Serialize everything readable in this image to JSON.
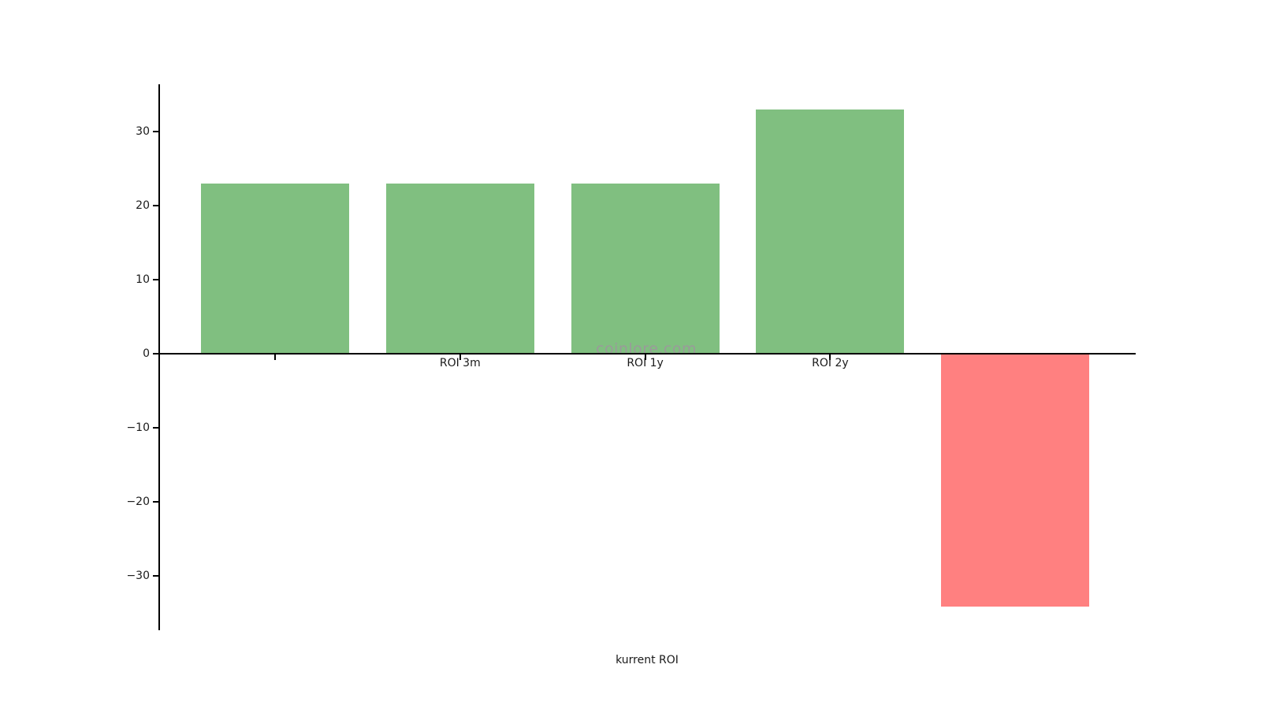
{
  "figure": {
    "background_color": "#ffffff",
    "watermark_text": "coinlore.com",
    "watermark_color": "#9a9a9a"
  },
  "chart_data": {
    "type": "bar",
    "title": "",
    "xlabel": "kurrent ROI",
    "ylabel": "",
    "categories": [
      "",
      "ROI 3m",
      "ROI 1y",
      "ROI 2y",
      ""
    ],
    "values": [
      23,
      23,
      23,
      33,
      -34
    ],
    "bar_colors": [
      "#80bf80",
      "#80bf80",
      "#80bf80",
      "#80bf80",
      "#ff8080"
    ],
    "positive_color": "#80bf80",
    "negative_color": "#ff8080",
    "ylim": [
      -37.35,
      36.35
    ],
    "yticks": [
      {
        "value": 30,
        "label": "30"
      },
      {
        "value": 20,
        "label": "20"
      },
      {
        "value": 10,
        "label": "10"
      },
      {
        "value": 0,
        "label": "0"
      },
      {
        "value": -10,
        "label": "−10"
      },
      {
        "value": -20,
        "label": "−20"
      },
      {
        "value": -30,
        "label": "−30"
      }
    ],
    "xtick_marks_visible": [
      true,
      true,
      true,
      true,
      false
    ],
    "grid": false,
    "legend": "none",
    "axis_color": "#000000",
    "tick_label_color": "#1a1a1a"
  }
}
